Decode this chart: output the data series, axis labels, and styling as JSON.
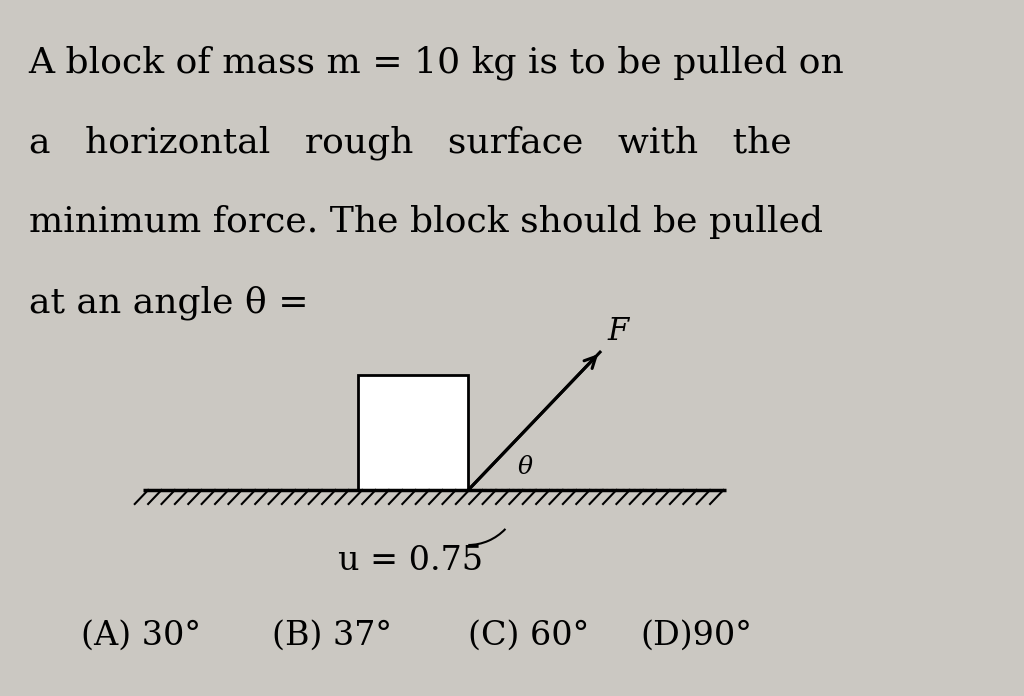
{
  "background_color": "#cbc8c2",
  "text_line1": "A block of mass m = 10 kg is to be pulled on",
  "text_line2": "a   horizontal   rough   surface   with   the",
  "text_line3": "minimum force. The block should be pulled",
  "text_line4": "at an angle θ =",
  "mu_text": "u = 0.75",
  "option_A": "(A) 30°",
  "option_B": "(B) 37°",
  "option_C": "(C) 60°",
  "option_D": "(D)90°",
  "force_label": "F",
  "angle_label": "θ",
  "text_fontsize": 26,
  "options_fontsize": 24,
  "label_fontsize": 22,
  "mu_fontsize": 24
}
